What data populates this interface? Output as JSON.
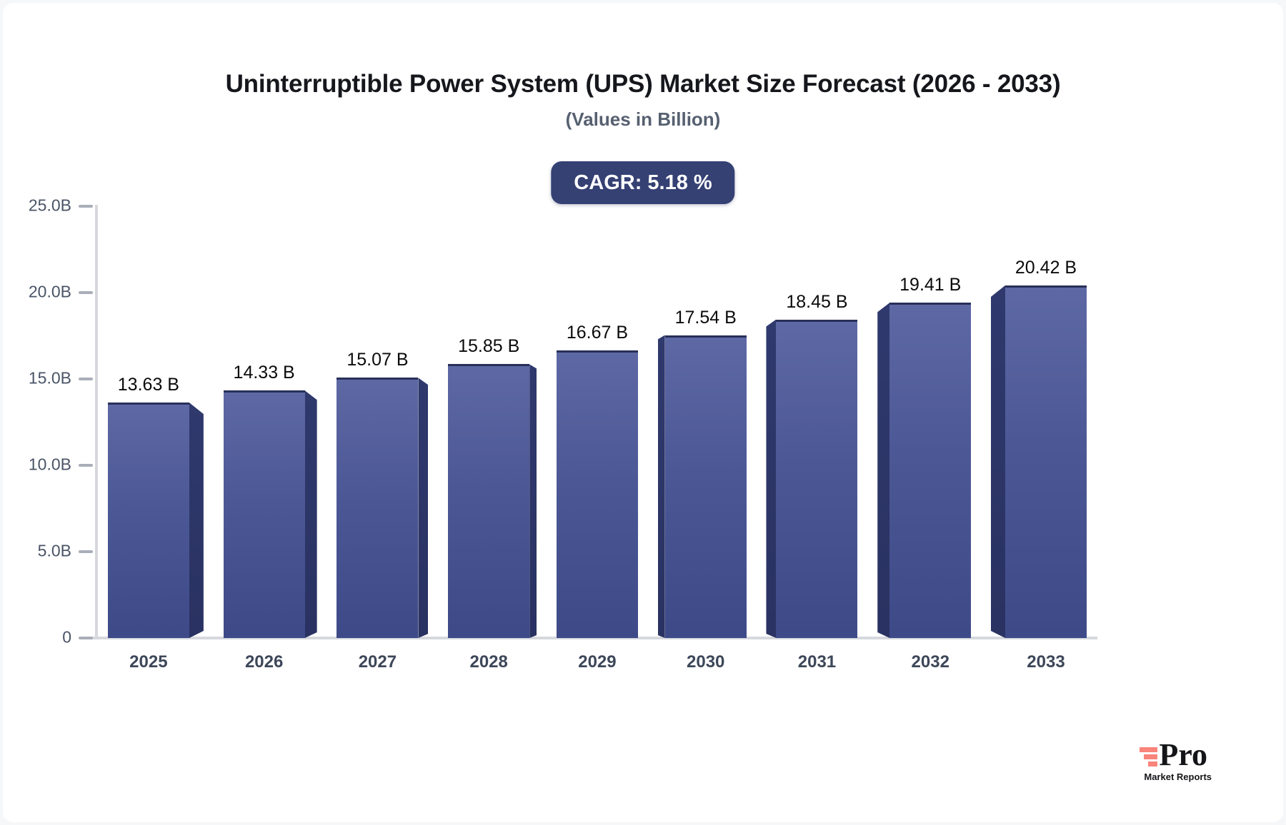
{
  "title": "Uninterruptible Power System (UPS) Market Size Forecast (2026 - 2033)",
  "subtitle": "(Values in Billion)",
  "badge": {
    "label": "CAGR: 5.18 %"
  },
  "logo": {
    "name": "Pro",
    "subtext": "Market Reports",
    "icon": "speed-lines-icon",
    "icon_color": "#f8847b"
  },
  "colors": {
    "bar_front_top": "#5d68a4",
    "bar_front_bottom": "#3e4a88",
    "bar_side": "#2c3566",
    "badge_background": "#354073",
    "axis_line": "#d6d8de",
    "tick_dash": "#a9aeb9",
    "y_label_text": "#4a5466",
    "x_label_text": "#3d4759",
    "value_label_text": "#0b0b0d"
  },
  "chart_data": {
    "type": "bar",
    "title": "Uninterruptible Power System (UPS) Market Size Forecast (2026 - 2033)",
    "subtitle": "(Values in Billion)",
    "annotation": "CAGR: 5.18 %",
    "categories": [
      "2025",
      "2026",
      "2027",
      "2028",
      "2029",
      "2030",
      "2031",
      "2032",
      "2033"
    ],
    "values": [
      13.63,
      14.33,
      15.07,
      15.85,
      16.67,
      17.54,
      18.45,
      19.41,
      20.42
    ],
    "value_labels": [
      "13.63 B",
      "14.33 B",
      "15.07 B",
      "15.85 B",
      "16.67 B",
      "17.54 B",
      "18.45 B",
      "19.41 B",
      "20.42 B"
    ],
    "xlabel": "",
    "ylabel": "",
    "ylim": [
      0,
      25
    ],
    "y_ticks_top_to_bottom": [
      "25.0B",
      "20.0B",
      "15.0B",
      "10.0B",
      "5.0B",
      "0"
    ],
    "grid": false,
    "legend": false,
    "style": "3d-perspective-bars-center-vanishing-point"
  }
}
